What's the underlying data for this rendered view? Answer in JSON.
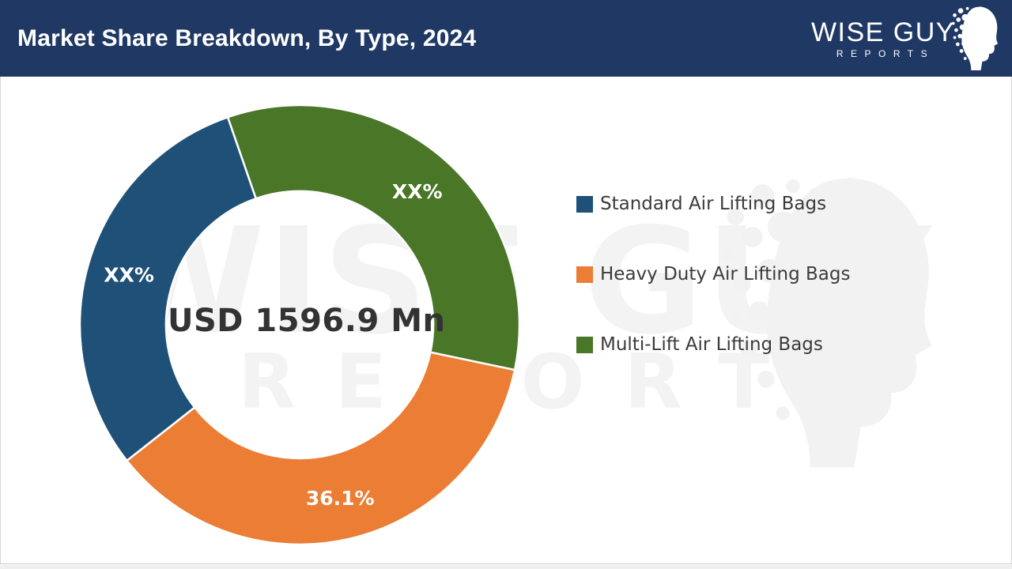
{
  "theme": {
    "header_bg": "#1f3864",
    "watermark_color": "#f3f3f3",
    "center_text_color": "#333333",
    "legend_text_color": "#3b3b3b"
  },
  "header": {
    "title": "Market Share Breakdown, By Type, 2024",
    "logo": {
      "line1": "WISE GUY",
      "line2": "REPORTS"
    }
  },
  "watermark": {
    "line1": "WISE GUY",
    "line2": "REPORTS"
  },
  "chart_data": {
    "type": "donut",
    "title": "Market Share Breakdown, By Type, 2024",
    "center_label": "USD 1596.9 Mn",
    "start_angle_deg": -19.1,
    "donut_hole_ratio": 0.61,
    "legend_position": "right",
    "segments": [
      {
        "name": "Multi-Lift Air Lifting Bags",
        "label": "XX%",
        "share_pct": 33.6,
        "color": "#4a7627"
      },
      {
        "name": "Heavy Duty Air Lifting Bags",
        "label": "36.1%",
        "share_pct": 36.1,
        "color": "#eb7d34"
      },
      {
        "name": "Standard Air Lifting Bags",
        "label": "XX%",
        "share_pct": 30.3,
        "color": "#1f5077"
      }
    ],
    "legend": [
      {
        "label": "Standard Air Lifting Bags",
        "color": "#1f5077"
      },
      {
        "label": "Heavy Duty Air Lifting Bags",
        "color": "#eb7d34"
      },
      {
        "label": "Multi-Lift Air Lifting Bags",
        "color": "#4a7627"
      }
    ]
  }
}
